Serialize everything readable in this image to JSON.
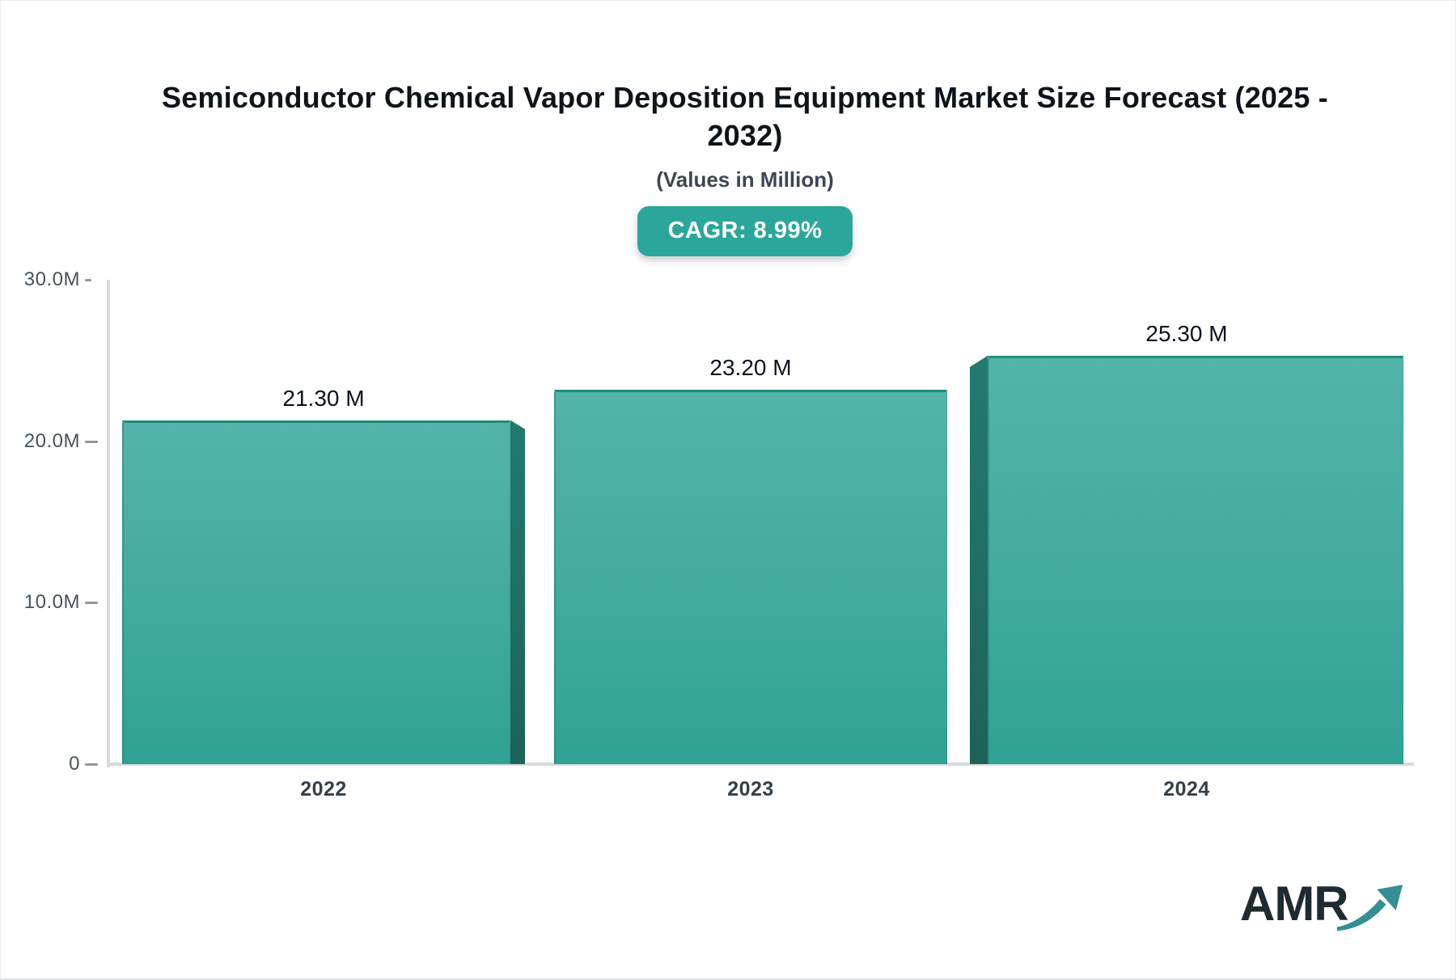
{
  "header": {
    "title_line1": "Semiconductor Chemical Vapor Deposition Equipment Market Size Forecast (2025 -",
    "title_line2": "2032)",
    "subtitle": "(Values in Million)",
    "cagr_badge": "CAGR: 8.99%"
  },
  "chart_data": {
    "type": "bar",
    "title": "Semiconductor Chemical Vapor Deposition Equipment Market Size Forecast (2025 - 2032)",
    "subtitle": "(Values in Million)",
    "cagr_percent": 8.99,
    "categories": [
      "2022",
      "2023",
      "2024"
    ],
    "values": [
      21.3,
      23.2,
      25.3
    ],
    "value_labels": [
      "21.30 M",
      "23.20 M",
      "25.30 M"
    ],
    "unit": "Million",
    "xlabel": "",
    "ylabel": "",
    "ylim": [
      0,
      30
    ],
    "y_ticks": [
      {
        "label": "30.0M",
        "value": 30
      },
      {
        "label": "20.0M",
        "value": 20
      },
      {
        "label": "10.0M",
        "value": 10
      },
      {
        "label": "0",
        "value": 0
      }
    ],
    "grid": "off",
    "legend": "none",
    "bar_style": "3d-bevel teal gradient"
  },
  "colors": {
    "accent_teal": "#2aa79a",
    "bar_gradient_top": "#53b4a8",
    "bar_gradient_bottom": "#2fa295",
    "bar_side": "#1f6f64",
    "axis_line": "#d7dade",
    "tick_text": "#47525f",
    "value_label_text": "#0b1220",
    "logo_arrow": "#358e93"
  },
  "logo": {
    "text": "AMR",
    "arrow_icon": "growth-arrow-icon"
  }
}
